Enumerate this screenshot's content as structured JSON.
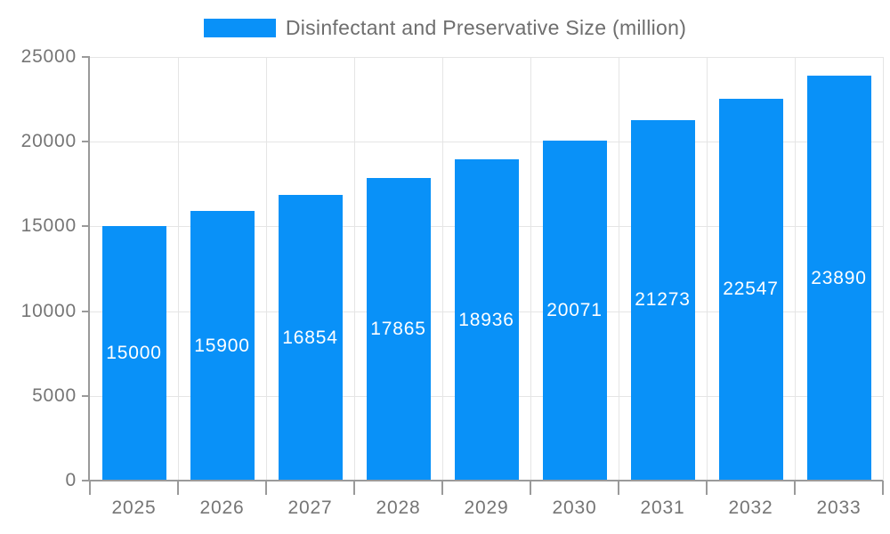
{
  "chart_data": {
    "type": "bar",
    "title": "Disinfectant and Preservative Size (million)",
    "legend": {
      "label": "Disinfectant and Preservative Size (million)",
      "position": "top"
    },
    "categories": [
      "2025",
      "2026",
      "2027",
      "2028",
      "2029",
      "2030",
      "2031",
      "2032",
      "2033"
    ],
    "series": [
      {
        "name": "Disinfectant and Preservative Size (million)",
        "values": [
          15000,
          15900,
          16854,
          17865,
          18936,
          20071,
          21273,
          22547,
          23890
        ]
      }
    ],
    "xlabel": "",
    "ylabel": "",
    "ylim": [
      0,
      25000
    ],
    "y_ticks": [
      0,
      5000,
      10000,
      15000,
      20000,
      25000
    ],
    "grid": true,
    "data_labels": "inside-center-white"
  },
  "colors": {
    "bar": "#0991F8",
    "bar_label": "#FFFFFF",
    "title_text": "#6E6E6E",
    "axis_label": "#757575",
    "axis_line": "#9A9A9A",
    "grid_line": "#E5E5E5"
  }
}
